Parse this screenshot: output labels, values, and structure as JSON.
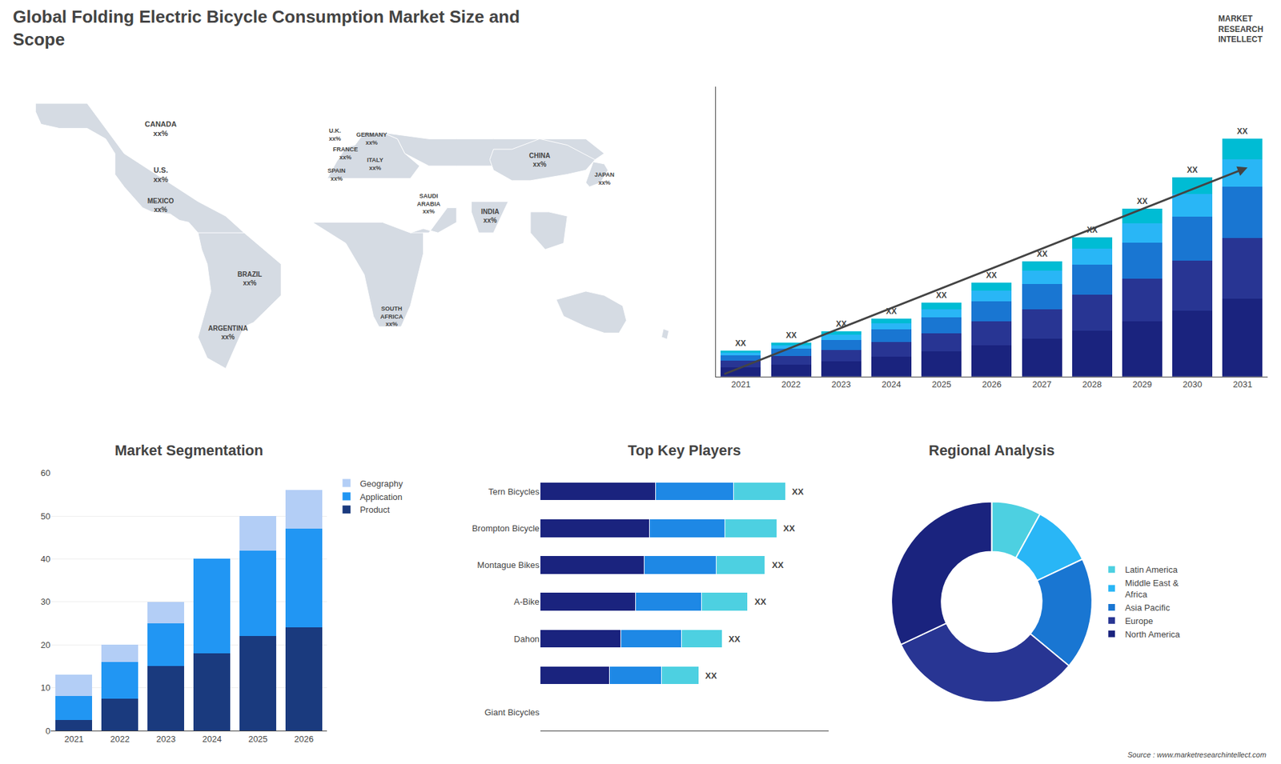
{
  "title": "Global Folding Electric Bicycle Consumption Market Size and\nScope",
  "annotations": [
    "MARKET\nRESEARCH\nINTELLECT",
    "Source : www.marketresearchintellect.com"
  ],
  "chart_data": [
    {
      "type": "map",
      "annotations": [
        "U.S.\nxx%",
        "CANADA\nxx%",
        "MEXICO\nxx%",
        "BRAZIL\nxx%",
        "ARGENTINA\nxx%",
        "U.K.\nxx%",
        "FRANCE\nxx%",
        "GERMANY\nxx%",
        "SPAIN\nxx%",
        "ITALY\nxx%",
        "SOUTH\nAFRICA\nxx%",
        "SAUDI\nARABIA\nxx%",
        "CHINA\nxx%",
        "INDIA\nxx%",
        "JAPAN\nxx%"
      ],
      "tick_labels": false,
      "grid": false
    },
    {
      "type": "bar",
      "stacked": true,
      "categories": [
        "2021",
        "2022",
        "2023",
        "2024",
        "2025",
        "2026",
        "2027",
        "2028",
        "2029",
        "2030",
        "2031"
      ],
      "series": [
        {
          "color": "#1a237e",
          "values": [
            1.0,
            1.3,
            1.7,
            2.2,
            2.8,
            3.5,
            4.3,
            5.2,
            6.2,
            7.4,
            8.8
          ]
        },
        {
          "color": "#283593",
          "values": [
            0.8,
            1.0,
            1.3,
            1.7,
            2.1,
            2.7,
            3.3,
            4.0,
            4.8,
            5.7,
            6.8
          ]
        },
        {
          "color": "#1976d2",
          "values": [
            0.6,
            0.8,
            1.1,
            1.4,
            1.8,
            2.3,
            2.8,
            3.4,
            4.1,
            4.9,
            5.8
          ]
        },
        {
          "color": "#29b6f6",
          "values": [
            0.3,
            0.4,
            0.6,
            0.7,
            0.9,
            1.2,
            1.5,
            1.8,
            2.2,
            2.6,
            3.1
          ]
        },
        {
          "color": "#00bcd4",
          "values": [
            0.2,
            0.3,
            0.4,
            0.5,
            0.7,
            0.9,
            1.1,
            1.3,
            1.6,
            1.9,
            2.3
          ]
        }
      ],
      "annotations": [
        "XX",
        "XX",
        "XX",
        "XX",
        "XX",
        "XX",
        "XX",
        "XX",
        "XX",
        "XX",
        "XX"
      ],
      "ylim": [
        0,
        32.696
      ],
      "yticks": [],
      "tick_labels": "x",
      "grid": false
    },
    {
      "type": "bar",
      "title": "Market Segmentation",
      "stacked": true,
      "categories": [
        "2021",
        "2022",
        "2023",
        "2024",
        "2025",
        "2026"
      ],
      "series": [
        {
          "name": "Product",
          "color": "#1a3a7e",
          "values": [
            2.5,
            7.5,
            15,
            18,
            22,
            24
          ]
        },
        {
          "name": "Application",
          "color": "#2196f3",
          "values": [
            5.5,
            8.5,
            10,
            22,
            20,
            23
          ]
        },
        {
          "name": "Geography",
          "color": "#b3cef6",
          "values": [
            5,
            4,
            5,
            0,
            8,
            9
          ]
        }
      ],
      "ylim": [
        0,
        60
      ],
      "yticks": [
        0,
        10,
        20,
        30,
        40,
        50,
        60
      ],
      "grid": true,
      "legend": "right"
    },
    {
      "type": "bar",
      "title": "Top Key Players",
      "orientation": "horizontal",
      "stacked": true,
      "categories": [
        "Tern Bicycles",
        "Brompton Bicycle",
        "Montague Bikes",
        "A-Bike",
        "Dahon",
        null,
        "Giant Bicycles"
      ],
      "series": [
        {
          "color": "#1a237e",
          "values": [
            0.4,
            0.38,
            0.36,
            0.33,
            0.28,
            0.24,
            null
          ]
        },
        {
          "color": "#1e88e5",
          "values": [
            0.27,
            0.26,
            0.25,
            0.23,
            0.21,
            0.18,
            null
          ]
        },
        {
          "color": "#4dd0e1",
          "values": [
            0.18,
            0.18,
            0.17,
            0.16,
            0.14,
            0.13,
            null
          ]
        }
      ],
      "annotations": [
        "XX",
        "XX",
        "XX",
        "XX",
        "XX",
        "XX",
        null
      ],
      "xlim": [
        0,
        1
      ],
      "xticks": [],
      "tick_labels": "y",
      "grid": false
    },
    {
      "type": "pie",
      "title": "Regional Analysis",
      "categories": [
        "Latin America",
        "Middle East &\nAfrica",
        "Asia Pacific",
        "Europe",
        "North America"
      ],
      "values": [
        8,
        10,
        18,
        32,
        32
      ],
      "colors": [
        "#4dd0e1",
        "#29b6f6",
        "#1976d2",
        "#283593",
        "#1a237e"
      ],
      "legend": "right"
    }
  ]
}
